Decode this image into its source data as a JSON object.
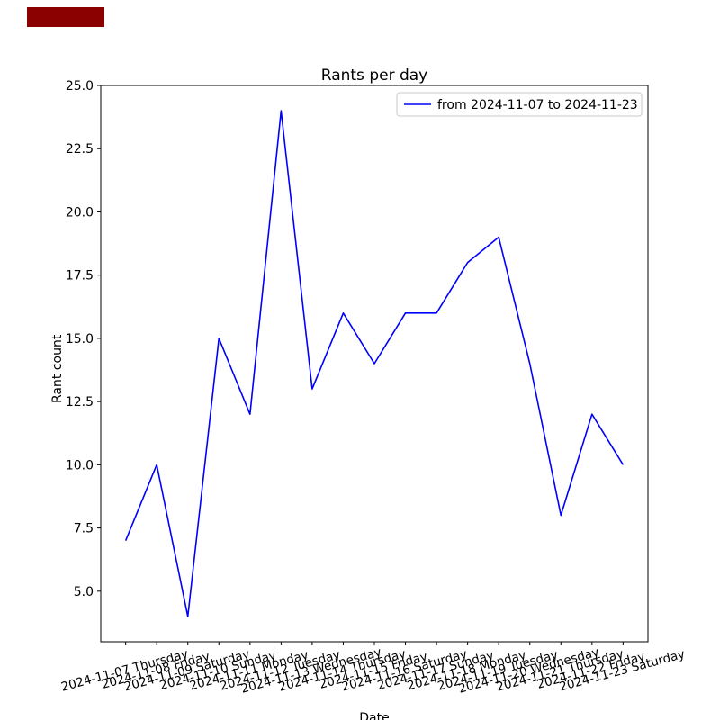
{
  "decor": {
    "red_banner_color": "#8b0000"
  },
  "chart_data": {
    "type": "line",
    "title": "Rants per day",
    "xlabel": "Date",
    "ylabel": "Rant count",
    "legend": [
      "from 2024-11-07 to 2024-11-23"
    ],
    "legend_position": "upper right",
    "line_color": "#0000ff",
    "grid": false,
    "categories": [
      "2024-11-07 Thursday",
      "2024-11-08 Friday",
      "2024-11-09 Saturday",
      "2024-11-10 Sunday",
      "2024-11-11 Monday",
      "2024-11-12 Tuesday",
      "2024-11-13 Wednesday",
      "2024-11-14 Thursday",
      "2024-11-15 Friday",
      "2024-11-16 Saturday",
      "2024-11-17 Sunday",
      "2024-11-18 Monday",
      "2024-11-19 Tuesday",
      "2024-11-20 Wednesday",
      "2024-11-21 Thursday",
      "2024-11-22 Friday",
      "2024-11-23 Saturday"
    ],
    "values": [
      7,
      10,
      4,
      15,
      12,
      24,
      13,
      16,
      14,
      16,
      16,
      18,
      19,
      14,
      8,
      12,
      10
    ],
    "yticks": [
      5.0,
      7.5,
      10.0,
      12.5,
      15.0,
      17.5,
      20.0,
      22.5,
      25.0
    ],
    "ylim": [
      3,
      25
    ],
    "xlim": [
      -0.8,
      16.8
    ],
    "tick_label_rotation": 15
  }
}
